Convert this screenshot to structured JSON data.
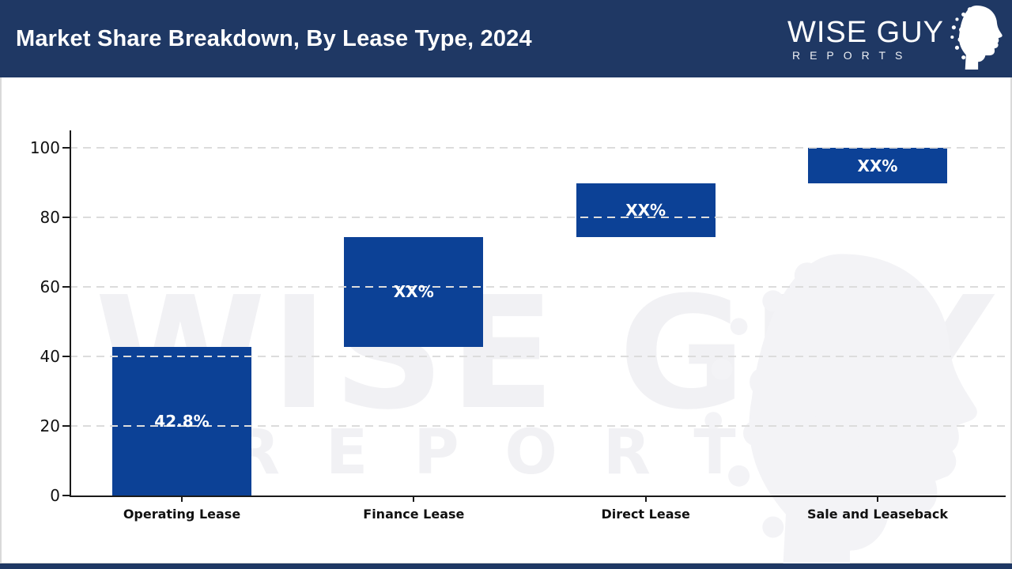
{
  "header": {
    "title": "Market Share Breakdown, By Lease Type, 2024",
    "background": "#1F3864",
    "logo": {
      "line1": "WISE GUY",
      "line2": "REPORTS"
    }
  },
  "watermark": {
    "line1": "WISE GUY",
    "line2": "REPORTS"
  },
  "chart_data": {
    "type": "waterfall",
    "title": "Market Share Breakdown, By Lease Type, 2024",
    "xlabel": "",
    "ylabel": "",
    "unit": "%",
    "categories": [
      "Operating Lease",
      "Finance Lease",
      "Direct Lease",
      "Sale and Leaseback"
    ],
    "segments": [
      {
        "category": "Operating Lease",
        "start": 0,
        "end": 42.8,
        "value": 42.8,
        "label": "42.8%",
        "masked": false
      },
      {
        "category": "Finance Lease",
        "start": 42.8,
        "end": 74.3,
        "value": null,
        "label": "XX%",
        "masked": true
      },
      {
        "category": "Direct Lease",
        "start": 74.3,
        "end": 89.7,
        "value": null,
        "label": "XX%",
        "masked": true
      },
      {
        "category": "Sale and Leaseback",
        "start": 89.7,
        "end": 100,
        "value": null,
        "label": "XX%",
        "masked": true
      }
    ],
    "yticks": [
      0,
      20,
      40,
      60,
      80,
      100
    ],
    "ylim": [
      0,
      105
    ],
    "grid": "horizontal-dashed",
    "legend": "none",
    "bar_color": "#0C4196",
    "bar_label_color": "#FFFFFF"
  },
  "colors": {
    "header_background": "#1F3864",
    "footer_background": "#1F3864",
    "bar": "#0C4196",
    "axis": "#1A1A1A",
    "gridline": "#DCDCDC",
    "tick_label": "#111111",
    "watermark": "#F1F1F4",
    "chart_border": "#D9D9D9",
    "title_text": "#FFFFFF"
  }
}
